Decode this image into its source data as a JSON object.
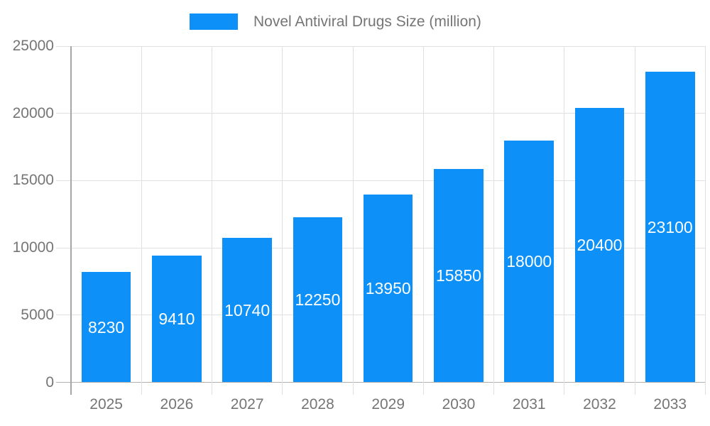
{
  "legend": {
    "label": "Novel Antiviral Drugs Size (million)"
  },
  "chart_data": {
    "type": "bar",
    "title": "",
    "categories": [
      "2025",
      "2026",
      "2027",
      "2028",
      "2029",
      "2030",
      "2031",
      "2032",
      "2033"
    ],
    "series": [
      {
        "name": "Novel Antiviral Drugs Size (million)",
        "values": [
          8230,
          9410,
          10740,
          12250,
          13950,
          15850,
          18000,
          20400,
          23100
        ]
      }
    ],
    "value_labels": [
      8230,
      9410,
      10740,
      12250,
      13950,
      15850,
      18000,
      20400,
      23100
    ],
    "xlabel": "",
    "ylabel": "",
    "ylim": [
      0,
      25000
    ],
    "yticks": [
      0,
      5000,
      10000,
      15000,
      20000,
      25000
    ],
    "grid": true,
    "legend_position": "top",
    "colors": {
      "bar": "#0d90f8",
      "axis_text": "#757575",
      "legend_text": "#757575",
      "gridline": "#e0e0e0",
      "baseline": "#b0b0b0",
      "axis_line": "#a6a6a6",
      "value_label_text": "#ffffff",
      "background": "#ffffff"
    }
  }
}
